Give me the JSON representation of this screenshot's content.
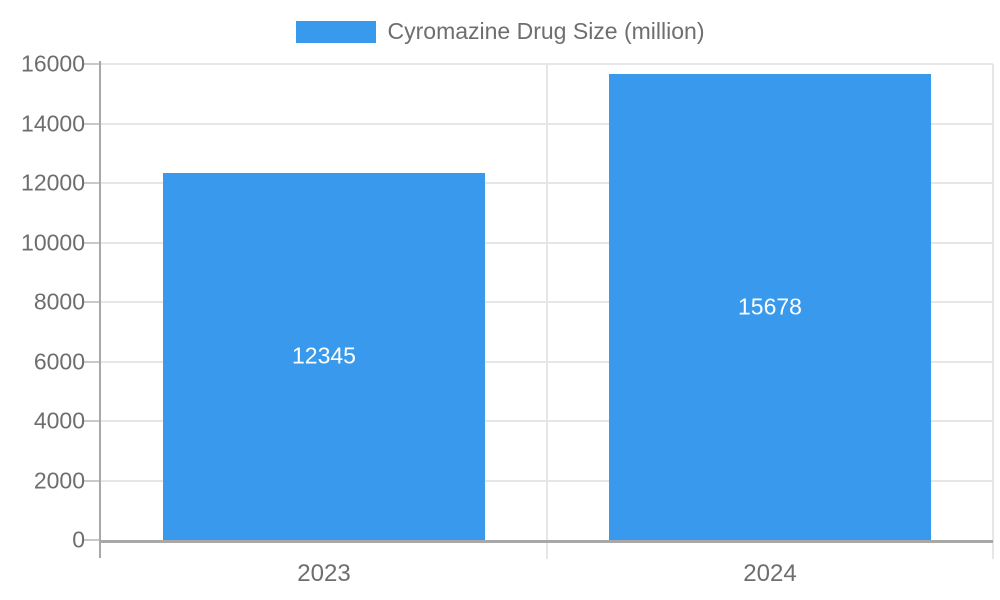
{
  "chart_data": {
    "type": "bar",
    "title": "",
    "legend": {
      "label": "Cyromazine Drug Size (million)",
      "position": "top-center"
    },
    "categories": [
      "2023",
      "2024"
    ],
    "series": [
      {
        "name": "Cyromazine Drug Size (million)",
        "values": [
          12345,
          15678
        ]
      }
    ],
    "data_labels": [
      "12345",
      "15678"
    ],
    "xlabel": "",
    "ylabel": "",
    "ylim": [
      0,
      16000
    ],
    "ytick_step": 2000,
    "ytick_labels": [
      "0",
      "2000",
      "4000",
      "6000",
      "8000",
      "10000",
      "12000",
      "14000",
      "16000"
    ],
    "grid": true,
    "colors": {
      "bar": "#3999ed",
      "gridline": "#e6e6e6",
      "tick": "#c9c9c9",
      "axis_line": "#a8a8a8",
      "axis_text": "#6e6e6e",
      "legend_text": "#6e6e6e",
      "value_label_text": "#ffffff",
      "background": "#ffffff"
    }
  }
}
